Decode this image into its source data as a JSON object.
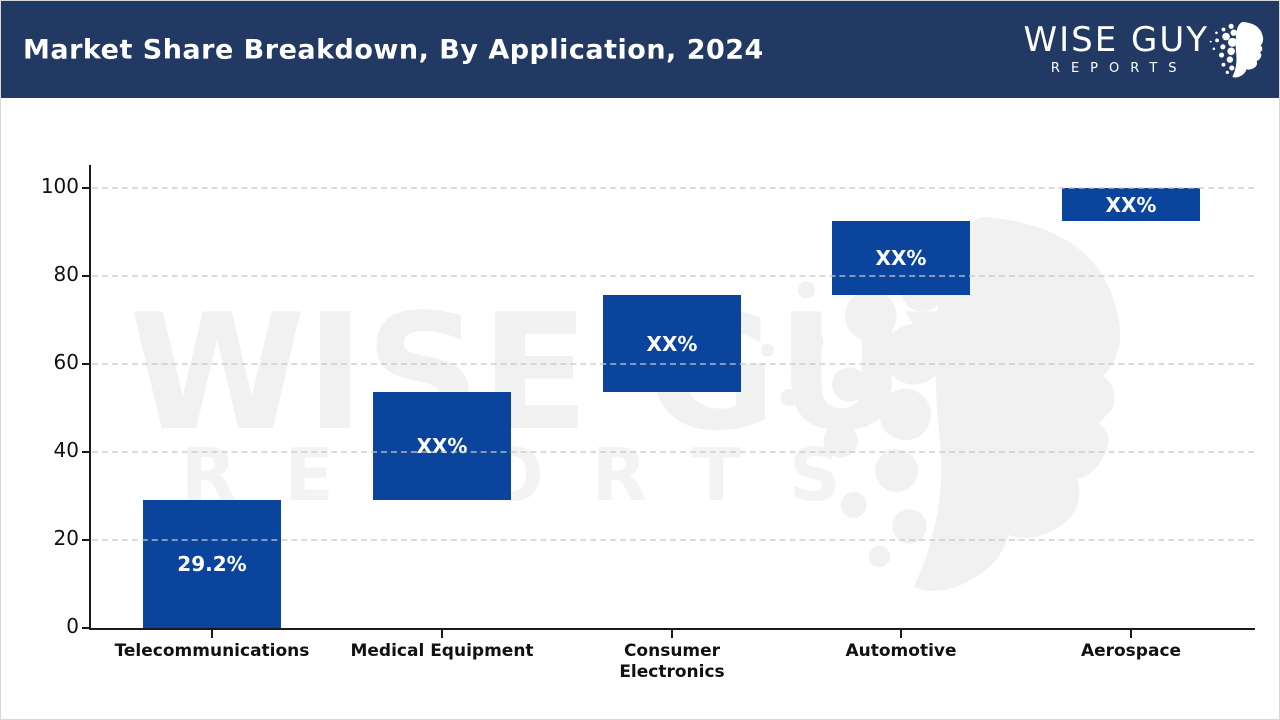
{
  "header": {
    "title": "Market Share Breakdown, By Application, 2024",
    "logo": {
      "line1": "WISE GUY",
      "line2": "REPORTS"
    }
  },
  "watermark": {
    "line1": "WISE GUY",
    "line2": "REPORTS"
  },
  "colors": {
    "header_bg": "#223a63",
    "bar": "#0a449c",
    "bar_label": "#ffffff",
    "axis": "#1a1a1a",
    "gridline": "#c8c8c8",
    "watermark": "#f1f1f1",
    "card_border": "#d8d8d8",
    "title_text": "#ffffff",
    "tick_text": "#111111"
  },
  "chart_data": {
    "type": "bar",
    "subtype": "waterfall",
    "title": "Market Share Breakdown, By Application, 2024",
    "categories": [
      "Telecommunications",
      "Medical Equipment",
      "Consumer Electronics",
      "Automotive",
      "Aerospace"
    ],
    "category_lines": [
      [
        "Telecommunications"
      ],
      [
        "Medical Equipment"
      ],
      [
        "Consumer",
        "Electronics"
      ],
      [
        "Automotive"
      ],
      [
        "Aerospace"
      ]
    ],
    "series": [
      {
        "name": "Market share (%)",
        "segments": [
          {
            "category": "Telecommunications",
            "start": 0,
            "end": 29.2,
            "label": "29.2%"
          },
          {
            "category": "Medical Equipment",
            "start": 29.2,
            "end": 53.6,
            "label": "XX%"
          },
          {
            "category": "Consumer Electronics",
            "start": 53.6,
            "end": 75.6,
            "label": "XX%"
          },
          {
            "category": "Automotive",
            "start": 75.6,
            "end": 92.5,
            "label": "XX%"
          },
          {
            "category": "Aerospace",
            "start": 92.5,
            "end": 100,
            "label": "XX%"
          }
        ]
      }
    ],
    "yticks": [
      0,
      20,
      40,
      60,
      80,
      100
    ],
    "ylim": [
      0,
      105
    ],
    "xlabel": "",
    "ylabel": "",
    "grid": "horizontal-dashed-over-bars",
    "legend": false,
    "bar_color": "#0a449c"
  }
}
